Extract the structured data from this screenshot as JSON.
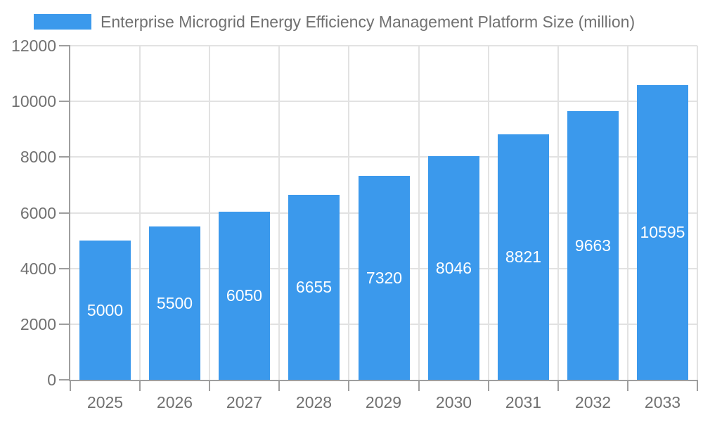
{
  "legend": {
    "label": "Enterprise Microgrid Energy Efficiency Management Platform Size (million)"
  },
  "colors": {
    "bar": "#3B99EC",
    "axis": "#9E9E9E",
    "tick": "#9E9E9E",
    "grid": "#E2E2E2",
    "text": "#717171",
    "bar_label": "#FFFFFF",
    "background": "#FFFFFF"
  },
  "chart_data": {
    "type": "bar",
    "title": "Enterprise Microgrid Energy Efficiency Management Platform Size (million)",
    "categories": [
      "2025",
      "2026",
      "2027",
      "2028",
      "2029",
      "2030",
      "2031",
      "2032",
      "2033"
    ],
    "values": [
      5000,
      5500,
      6050,
      6655,
      7320,
      8046,
      8821,
      9663,
      10595
    ],
    "bar_value_labels": [
      "5000",
      "5500",
      "6050",
      "6655",
      "7320",
      "8046",
      "8821",
      "9663",
      "10595"
    ],
    "series": [
      {
        "name": "Enterprise Microgrid Energy Efficiency Management Platform Size (million)",
        "values": [
          5000,
          5500,
          6050,
          6655,
          7320,
          8046,
          8821,
          9663,
          10595
        ]
      }
    ],
    "xlabel": "",
    "ylabel": "",
    "ylim": [
      0,
      12000
    ],
    "yticks": [
      0,
      2000,
      4000,
      6000,
      8000,
      10000,
      12000
    ],
    "ytick_labels": [
      "0",
      "2000",
      "4000",
      "6000",
      "8000",
      "10000",
      "12000"
    ],
    "grid": true,
    "grid_vertical": true,
    "legend_position": "top-left",
    "value_labels_position": "inside-center"
  }
}
